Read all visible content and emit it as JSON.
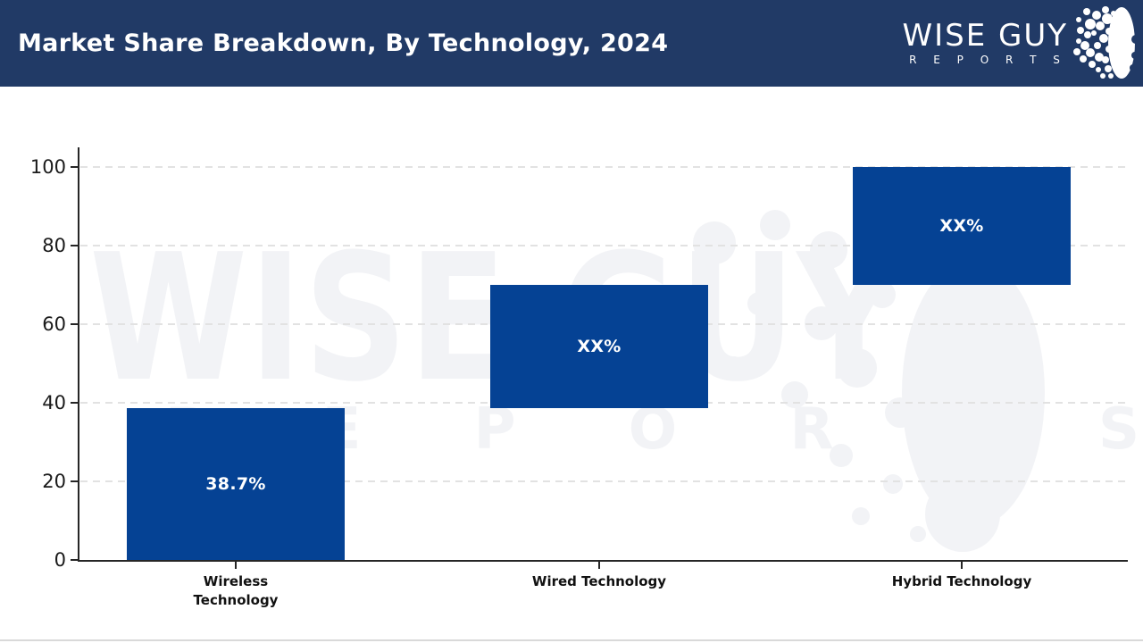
{
  "header": {
    "title": "Market Share Breakdown, By Technology, 2024",
    "logo": {
      "line1": "WISE GUY",
      "line2": "R E P O R T S"
    }
  },
  "watermark": {
    "line1": "WISE GUY",
    "line2": "R E P O R T S"
  },
  "colors": {
    "header_bg": "#213a66",
    "bar": "#054294",
    "axis": "#262626",
    "gridline": "#e2e2e2",
    "tick_text": "#1a1a1a",
    "bar_label_text": "#ffffff",
    "watermark": "#f2f3f6"
  },
  "chart_data": {
    "type": "bar",
    "subtype": "floating-waterfall",
    "title": "Market Share Breakdown, By Technology, 2024",
    "categories": [
      "Wireless Technology",
      "Wired Technology",
      "Hybrid Technology"
    ],
    "category_label_lines": [
      [
        "Wireless",
        "Technology"
      ],
      [
        "Wired Technology"
      ],
      [
        "Hybrid Technology"
      ]
    ],
    "segments": [
      {
        "category": "Wireless Technology",
        "start": 0,
        "end": 38.7,
        "label": "38.7%"
      },
      {
        "category": "Wired Technology",
        "start": 38.7,
        "end": 70,
        "label": "XX%"
      },
      {
        "category": "Hybrid Technology",
        "start": 70,
        "end": 100,
        "label": "XX%"
      }
    ],
    "xlabel": "",
    "ylabel": "",
    "yticks": [
      0,
      20,
      40,
      60,
      80,
      100
    ],
    "ylim": [
      0,
      105
    ],
    "grid": "horizontal-dashed",
    "legend": "none",
    "bar_color": "#054294",
    "value_label_color": "#ffffff"
  }
}
